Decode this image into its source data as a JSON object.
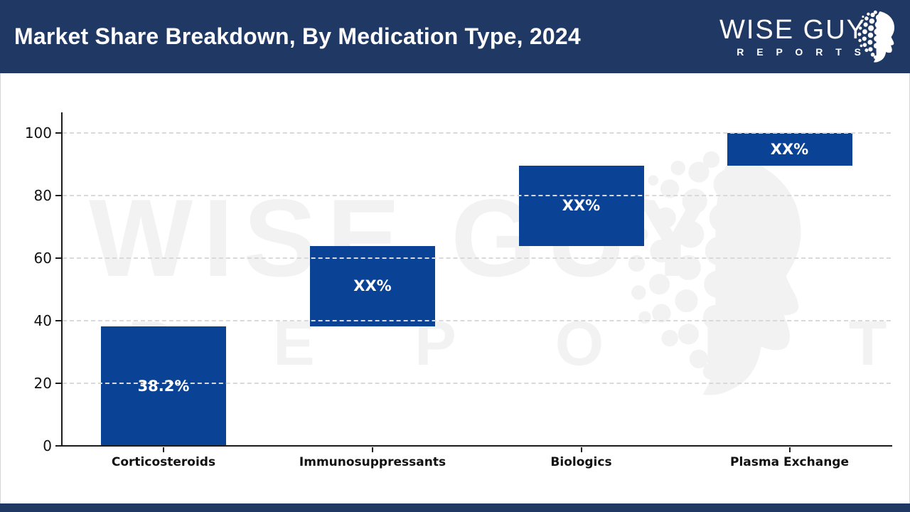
{
  "header": {
    "title": "Market Share Breakdown, By Medication Type, 2024",
    "logo": {
      "line1": "WISE GUY",
      "line2": "R E P O R T S"
    },
    "colors": {
      "background": "#1f3864",
      "text": "#ffffff"
    }
  },
  "watermark": {
    "line1": "WISE GUY",
    "line2": "R E P O R T S"
  },
  "chart_data": {
    "type": "bar",
    "subtype": "waterfall-floating-bars",
    "title": "Market Share Breakdown, By Medication Type, 2024",
    "xlabel": "",
    "ylabel": "",
    "ylim": [
      0,
      100
    ],
    "yticks": [
      0,
      20,
      40,
      60,
      80,
      100
    ],
    "grid": "horizontal dashed",
    "legend": "none",
    "categories": [
      "Corticosteroids",
      "Immunosuppressants",
      "Biologics",
      "Plasma Exchange"
    ],
    "segments": [
      {
        "category": "Corticosteroids",
        "start": 0,
        "end": 38.2,
        "label": "38.2%"
      },
      {
        "category": "Immunosuppressants",
        "start": 38.2,
        "end": 63.8,
        "label": "XX%"
      },
      {
        "category": "Biologics",
        "start": 63.8,
        "end": 89.5,
        "label": "XX%"
      },
      {
        "category": "Plasma Exchange",
        "start": 89.5,
        "end": 100,
        "label": "XX%"
      }
    ],
    "bar_color": "#0a4296",
    "bar_label_color": "#ffffff",
    "grid_color": "#d9d9d9",
    "axis_color": "#1c1c1c"
  }
}
